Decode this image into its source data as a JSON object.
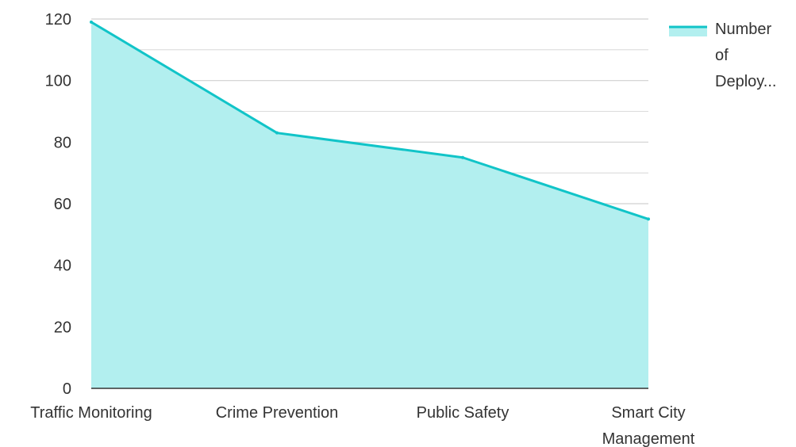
{
  "chart_data": {
    "type": "area",
    "categories": [
      "Traffic Monitoring",
      "Crime Prevention",
      "Public Safety",
      "Smart City Management"
    ],
    "series": [
      {
        "name": "Number of Deploy...",
        "values": [
          119,
          83,
          75,
          55
        ]
      }
    ],
    "title": "",
    "xlabel": "",
    "ylabel": "",
    "ylim": [
      0,
      120
    ],
    "yticks": [
      0,
      20,
      40,
      60,
      80,
      100,
      120
    ],
    "grid": true,
    "legend": "top-right",
    "colors": {
      "line": "#11c4c8",
      "fill": "#b2efef",
      "grid": "#d0d0d0",
      "axis": "#333333"
    }
  },
  "legend": {
    "label_lines": [
      "Number",
      "of",
      "Deploy..."
    ]
  },
  "x_tick_lines": [
    [
      "Traffic Monitoring"
    ],
    [
      "Crime Prevention"
    ],
    [
      "Public Safety"
    ],
    [
      "Smart City",
      "Management"
    ]
  ]
}
